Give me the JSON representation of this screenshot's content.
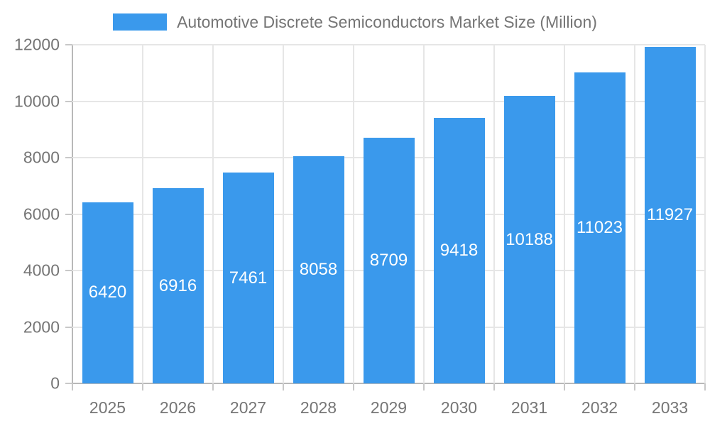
{
  "legend": {
    "label": "Automotive Discrete Semiconductors Market Size (Million)",
    "swatch_color": "#3A99EC"
  },
  "chart_data": {
    "type": "bar",
    "title": "Automotive Discrete Semiconductors Market Size (Million)",
    "categories": [
      "2025",
      "2026",
      "2027",
      "2028",
      "2029",
      "2030",
      "2031",
      "2032",
      "2033"
    ],
    "series": [
      {
        "name": "Automotive Discrete Semiconductors Market Size (Million)",
        "values": [
          6420,
          6916,
          7461,
          8058,
          8709,
          9418,
          10188,
          11023,
          11927
        ]
      }
    ],
    "xlabel": "",
    "ylabel": "",
    "ylim": [
      0,
      12000
    ],
    "y_ticks": [
      0,
      2000,
      4000,
      6000,
      8000,
      10000,
      12000
    ],
    "grid": true,
    "legend_position": "top-center",
    "value_labels_shown": true,
    "value_label_position": "inside-center",
    "bar_color": "#3A99EC",
    "value_label_color": "#ffffff",
    "axis_text_color": "#757575",
    "gridline_color": "#e6e6e6",
    "axis_line_color": "#b8b8b8",
    "background_color": "#ffffff"
  }
}
